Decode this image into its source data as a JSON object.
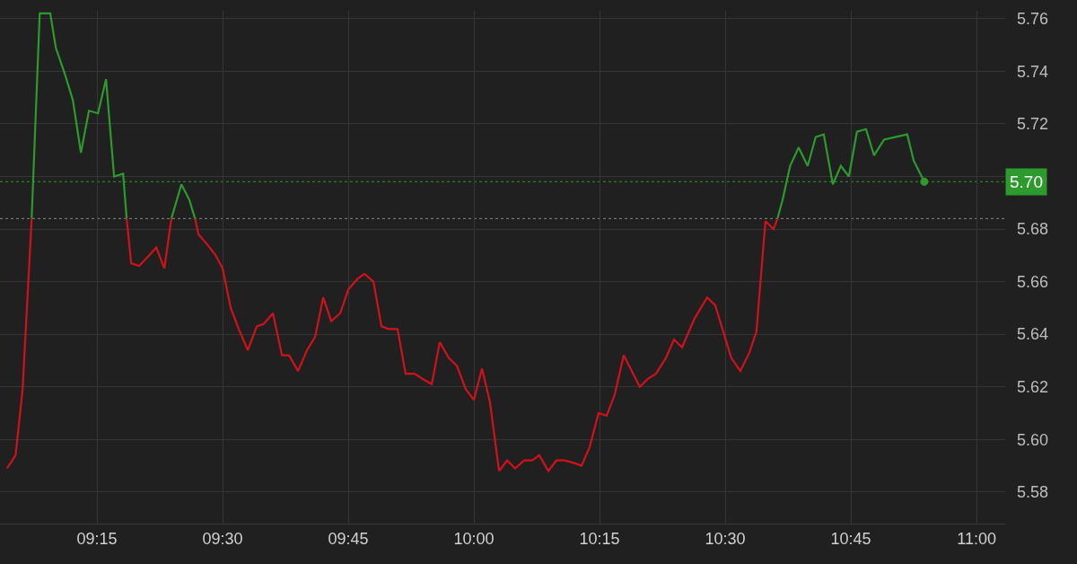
{
  "chart_data": {
    "type": "line",
    "series": [
      {
        "color": "#d0121b",
        "x": [
          9.071,
          9.088,
          9.102,
          9.12
        ],
        "values": [
          5.589,
          5.594,
          5.619,
          5.684
        ]
      },
      {
        "color": "#2c9a2c",
        "x": [
          9.12,
          9.136,
          9.157,
          9.168,
          9.186,
          9.202,
          9.218,
          9.234,
          9.252,
          9.268,
          9.284,
          9.302,
          9.309
        ],
        "values": [
          5.684,
          5.762,
          5.762,
          5.749,
          5.739,
          5.729,
          5.709,
          5.725,
          5.724,
          5.737,
          5.7,
          5.701,
          5.684
        ]
      },
      {
        "color": "#d0121b",
        "x": [
          9.309,
          9.318,
          9.334,
          9.354,
          9.368,
          9.384,
          9.398
        ],
        "values": [
          5.684,
          5.667,
          5.666,
          5.67,
          5.673,
          5.665,
          5.684
        ]
      },
      {
        "color": "#2c9a2c",
        "x": [
          9.398,
          9.418,
          9.434,
          9.445
        ],
        "values": [
          5.684,
          5.697,
          5.691,
          5.684
        ]
      },
      {
        "color": "#d0121b",
        "x": [
          9.445,
          9.452,
          9.47,
          9.486,
          9.5,
          9.516,
          9.532,
          9.55,
          9.568,
          9.582,
          9.6,
          9.618,
          9.632,
          9.65,
          9.668,
          9.684,
          9.7,
          9.716,
          9.734,
          9.75,
          9.768,
          9.782,
          9.8,
          9.816,
          9.83,
          9.848,
          9.864,
          9.882,
          9.898,
          9.916,
          9.932,
          9.95,
          9.966,
          9.984,
          10.0,
          10.016,
          10.032,
          10.05,
          10.066,
          10.082,
          10.1,
          10.116,
          10.13,
          10.148,
          10.164,
          10.18,
          10.2,
          10.214,
          10.23,
          10.248,
          10.264,
          10.28,
          10.298,
          10.33,
          10.346,
          10.362,
          10.382,
          10.398,
          10.414,
          10.439,
          10.464,
          10.48,
          10.512,
          10.53,
          10.548,
          10.562,
          10.58,
          10.596,
          10.604
        ],
        "values": [
          5.684,
          5.678,
          5.674,
          5.67,
          5.665,
          5.65,
          5.642,
          5.634,
          5.643,
          5.644,
          5.648,
          5.632,
          5.632,
          5.626,
          5.634,
          5.639,
          5.654,
          5.645,
          5.648,
          5.657,
          5.661,
          5.663,
          5.66,
          5.643,
          5.642,
          5.642,
          5.625,
          5.625,
          5.623,
          5.621,
          5.637,
          5.631,
          5.628,
          5.619,
          5.615,
          5.627,
          5.614,
          5.588,
          5.592,
          5.589,
          5.592,
          5.592,
          5.594,
          5.588,
          5.592,
          5.592,
          5.591,
          5.59,
          5.597,
          5.61,
          5.609,
          5.617,
          5.632,
          5.62,
          5.623,
          5.625,
          5.631,
          5.638,
          5.635,
          5.646,
          5.654,
          5.651,
          5.631,
          5.626,
          5.633,
          5.641,
          5.683,
          5.68,
          5.684
        ]
      },
      {
        "color": "#2c9a2c",
        "x": [
          10.604,
          10.614,
          10.629,
          10.646,
          10.664,
          10.68,
          10.696,
          10.714,
          10.73,
          10.746,
          10.762,
          10.78,
          10.796,
          10.816,
          10.862,
          10.875,
          10.896
        ],
        "values": [
          5.684,
          5.691,
          5.704,
          5.711,
          5.704,
          5.715,
          5.716,
          5.697,
          5.704,
          5.7,
          5.717,
          5.718,
          5.708,
          5.714,
          5.716,
          5.706,
          5.698
        ]
      },
      {
        "type": "scatter",
        "color": "#2c9a2c",
        "x": [
          10.896
        ],
        "values": [
          5.698
        ]
      }
    ],
    "xlim": [
      9.057,
      11.057
    ],
    "xticks": [
      {
        "value": 9.25,
        "label": "09:15"
      },
      {
        "value": 9.5,
        "label": "09:30"
      },
      {
        "value": 9.75,
        "label": "09:45"
      },
      {
        "value": 10,
        "label": "10:00"
      },
      {
        "value": 10.25,
        "label": "10:15"
      },
      {
        "value": 10.5,
        "label": "10:30"
      },
      {
        "value": 10.75,
        "label": "10:45"
      },
      {
        "value": 11,
        "label": "11:00"
      }
    ],
    "ylim": [
      5.568,
      5.763
    ],
    "yticks": [
      {
        "value": 5.58,
        "label": "5.58"
      },
      {
        "value": 5.6,
        "label": "5.60"
      },
      {
        "value": 5.62,
        "label": "5.62"
      },
      {
        "value": 5.64,
        "label": "5.64"
      },
      {
        "value": 5.66,
        "label": "5.66"
      },
      {
        "value": 5.68,
        "label": "5.68"
      },
      {
        "value": 5.7,
        "label": null
      },
      {
        "value": 5.72,
        "label": "5.72"
      },
      {
        "value": 5.74,
        "label": "5.74"
      },
      {
        "value": 5.76,
        "label": "5.76"
      }
    ],
    "ref_lines": [
      {
        "axis": "y",
        "value": 5.684,
        "color": "#8a8a8a",
        "line_style": "dotted"
      },
      {
        "axis": "y",
        "value": 5.698,
        "color": "#2c9a2c",
        "line_style": "dotted",
        "label": "5.70"
      }
    ],
    "grid": true
  }
}
